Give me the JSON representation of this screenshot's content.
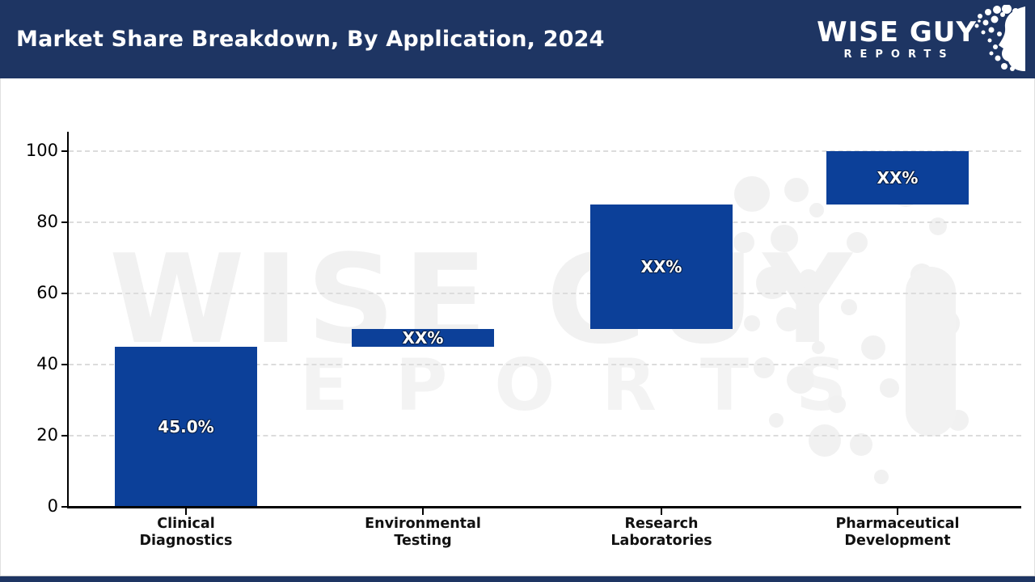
{
  "header": {
    "title": "Market Share Breakdown, By Application, 2024",
    "logo": {
      "line1": "WISE GUY",
      "line2": "REPORTS"
    }
  },
  "watermark": {
    "line1": "WISE GUY",
    "line2": "REPORTS"
  },
  "chart_data": {
    "type": "bar",
    "variant": "waterfall",
    "title": "Market Share Breakdown, By Application, 2024",
    "categories": [
      [
        "Clinical",
        "Diagnostics"
      ],
      [
        "Environmental",
        "Testing"
      ],
      [
        "Research",
        "Laboratories"
      ],
      [
        "Pharmaceutical",
        "Development"
      ]
    ],
    "segments": [
      {
        "category": "Clinical Diagnostics",
        "start": 0,
        "end": 45,
        "label": "45.0%"
      },
      {
        "category": "Environmental Testing",
        "start": 45,
        "end": 50,
        "label": "XX%"
      },
      {
        "category": "Research Laboratories",
        "start": 50,
        "end": 85,
        "label": "XX%"
      },
      {
        "category": "Pharmaceutical Development",
        "start": 85,
        "end": 100,
        "label": "XX%"
      }
    ],
    "yticks": [
      "0",
      "20",
      "40",
      "60",
      "80",
      "100"
    ],
    "ylim": [
      0,
      105
    ],
    "grid": "dashed-horizontal",
    "legend": "none"
  },
  "colors": {
    "header_bg": "#1e3563",
    "bar": "#0c4099",
    "grid": "#dcdcdc",
    "watermark": "#f1f1f1"
  }
}
